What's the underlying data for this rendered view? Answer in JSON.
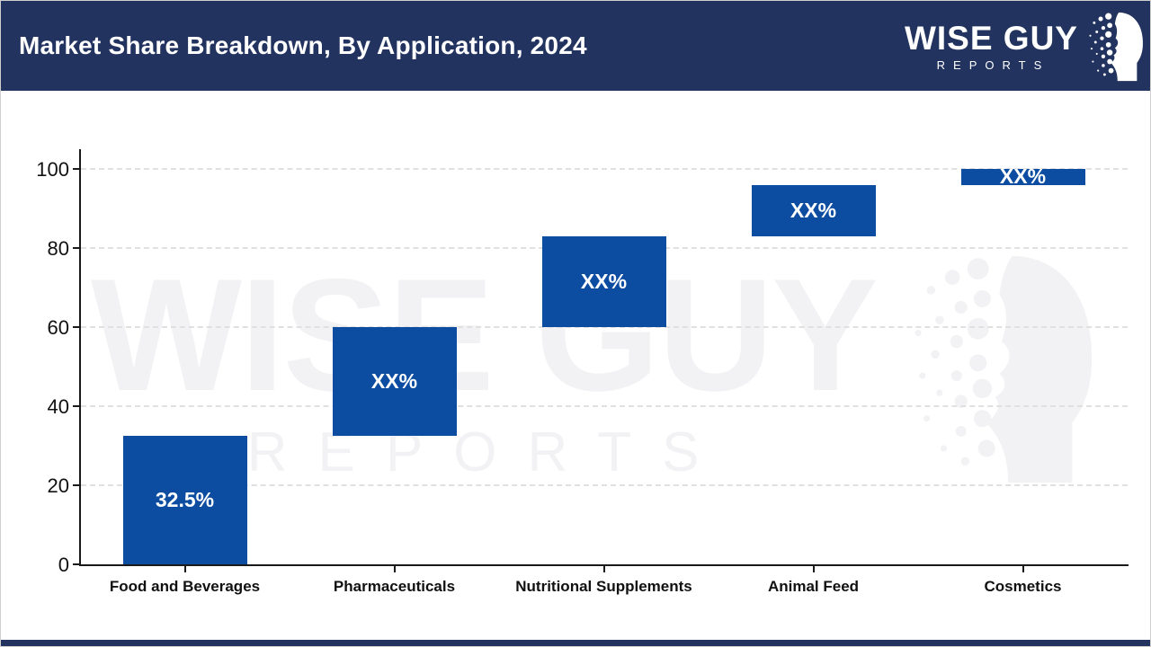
{
  "header": {
    "title": "Market Share Breakdown, By Application, 2024",
    "logo": {
      "line1": "WISE GUY",
      "line2": "REPORTS"
    }
  },
  "watermark": {
    "line1": "WISE GUY",
    "line2": "REPORTS"
  },
  "colors": {
    "header_bg": "#22335f",
    "footer_bg": "#22335f",
    "bar": "#0d4da1",
    "bar_label": "#ffffff",
    "gridline": "#e0e0e0",
    "axis": "#1a1a1a",
    "watermark": "#f2f2f4"
  },
  "chart_data": {
    "type": "bar",
    "subtype": "floating-waterfall",
    "title": "Market Share Breakdown, By Application, 2024",
    "categories": [
      "Food and Beverages",
      "Pharmaceuticals",
      "Nutritional Supplements",
      "Animal Feed",
      "Cosmetics"
    ],
    "bars": [
      {
        "category": "Food and Beverages",
        "start": 0,
        "end": 32.5,
        "label": "32.5%"
      },
      {
        "category": "Pharmaceuticals",
        "start": 32.5,
        "end": 60,
        "label": "XX%"
      },
      {
        "category": "Nutritional Supplements",
        "start": 60,
        "end": 83,
        "label": "XX%"
      },
      {
        "category": "Animal Feed",
        "start": 83,
        "end": 96,
        "label": "XX%"
      },
      {
        "category": "Cosmetics",
        "start": 96,
        "end": 100,
        "label": "XX%"
      }
    ],
    "xlabel": "",
    "ylabel": "",
    "ylim": [
      0,
      105
    ],
    "yticks": [
      0,
      20,
      40,
      60,
      80,
      100
    ],
    "grid": "horizontal-dashed",
    "legend": "none"
  }
}
